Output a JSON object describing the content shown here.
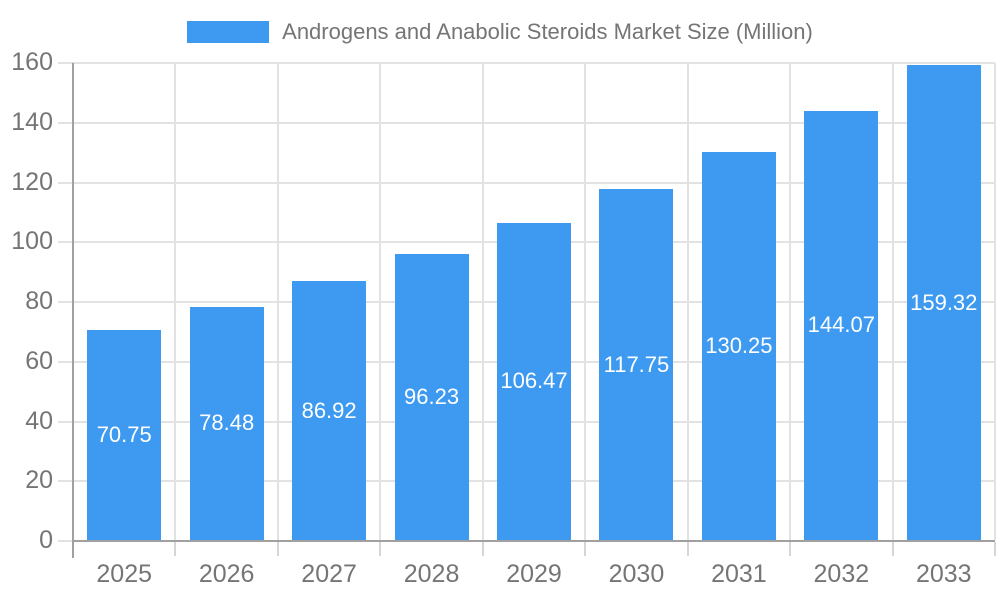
{
  "chart_data": {
    "type": "bar",
    "title": "Androgens and Anabolic Steroids Market Size (Million)",
    "categories": [
      "2025",
      "2026",
      "2027",
      "2028",
      "2029",
      "2030",
      "2031",
      "2032",
      "2033"
    ],
    "values": [
      70.75,
      78.48,
      86.92,
      96.23,
      106.47,
      117.75,
      130.25,
      144.07,
      159.32
    ],
    "series_name": "Androgens and Anabolic Steroids Market Size (Million)",
    "xlabel": "",
    "ylabel": "",
    "ylim": [
      0,
      160
    ],
    "ytick_step": 20,
    "yticks": [
      0,
      20,
      40,
      60,
      80,
      100,
      120,
      140,
      160
    ],
    "grid": true,
    "legend_position": "top",
    "colors": {
      "bar": "#3d9af0",
      "value_label": "#ffffff",
      "axis_label": "#757575",
      "title": "#757575",
      "grid_line": "#e2e2e2",
      "axis_line": "#a0a0a0",
      "x_tick": "#d6d6d6",
      "background": "#ffffff"
    }
  }
}
